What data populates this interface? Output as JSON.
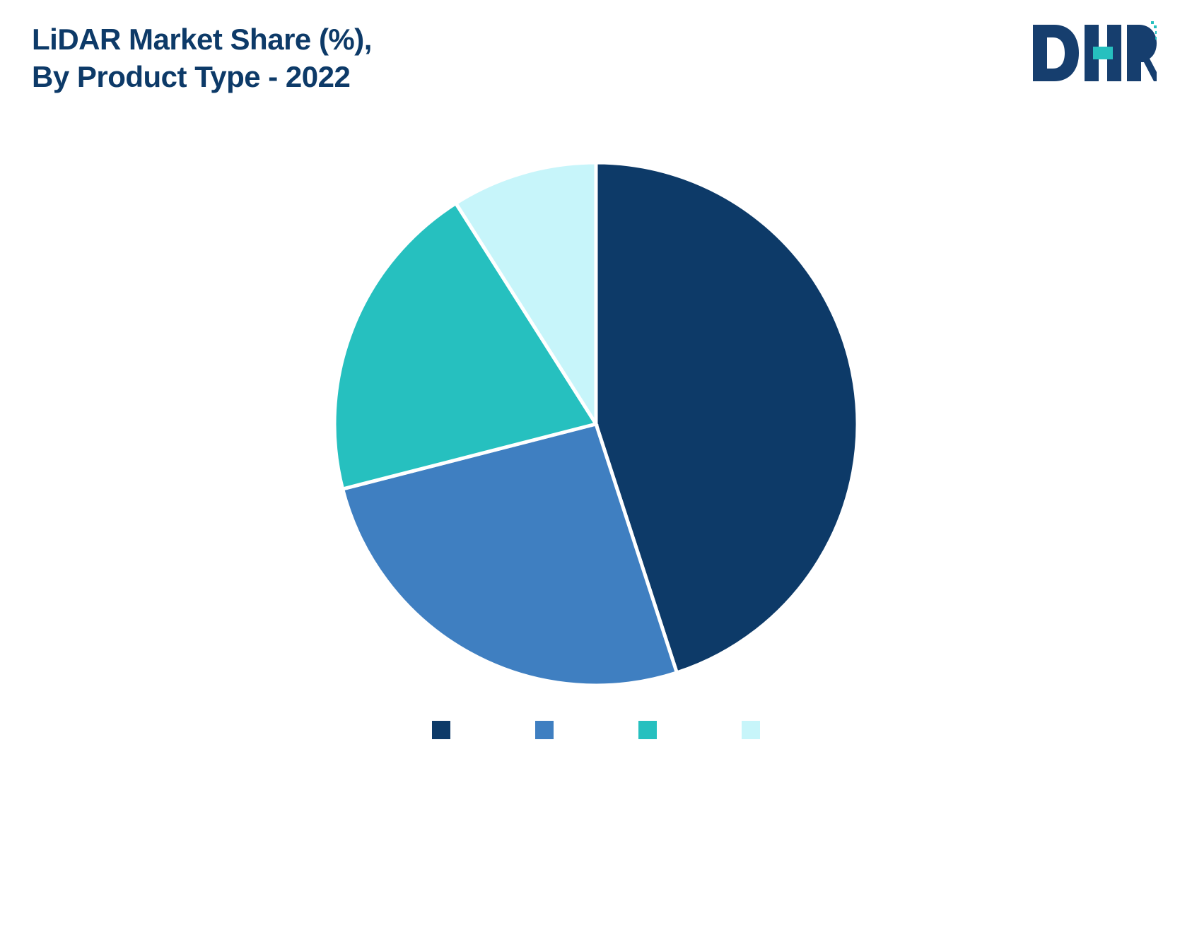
{
  "title": {
    "line1": "LiDAR Market Share (%),",
    "line2": "By Product Type - 2022",
    "color": "#0d3a68",
    "font_size_pt": 32,
    "font_weight": 900
  },
  "logo": {
    "text": "DHR",
    "primary_color": "#163e6e",
    "accent_color": "#26c0bf"
  },
  "chart": {
    "type": "pie",
    "background_color": "#ffffff",
    "stroke_color": "#ffffff",
    "stroke_width": 5,
    "radius": 370,
    "slices": [
      {
        "value": 45,
        "color": "#0d3a68"
      },
      {
        "value": 26,
        "color": "#3f7fc1"
      },
      {
        "value": 20,
        "color": "#26c0bf"
      },
      {
        "value": 9,
        "color": "#c7f5fa"
      }
    ]
  },
  "legend": {
    "swatch_size": 26,
    "items": [
      {
        "color": "#0d3a68"
      },
      {
        "color": "#3f7fc1"
      },
      {
        "color": "#26c0bf"
      },
      {
        "color": "#c7f5fa"
      }
    ]
  }
}
